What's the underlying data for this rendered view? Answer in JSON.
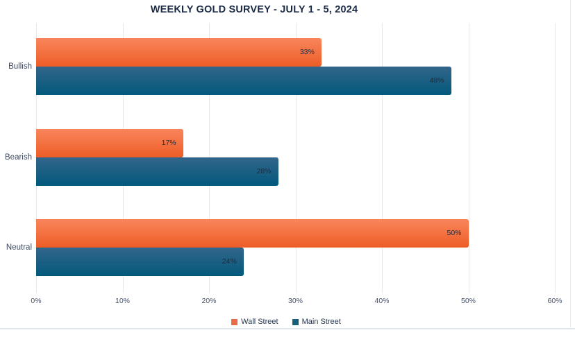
{
  "page": {
    "background": "#ffffff",
    "card_border_color": "#dce7f0"
  },
  "chart_data": {
    "type": "bar",
    "orientation": "horizontal",
    "title": "WEEKLY GOLD SURVEY - JULY 1 - 5, 2024",
    "title_color": "#1c2b45",
    "categories": [
      "Bullish",
      "Bearish",
      "Neutral"
    ],
    "series": [
      {
        "name": "Wall Street",
        "values": [
          33,
          17,
          50
        ],
        "color_top": "#f9855c",
        "color_bottom": "#ee5d26",
        "legend_color": "#ea6d47"
      },
      {
        "name": "Main Street",
        "values": [
          48,
          28,
          24
        ],
        "color_top": "#33658a",
        "color_bottom": "#02597c",
        "legend_color": "#176079"
      }
    ],
    "value_suffix": "%",
    "data_label_color": "#1e2c3e",
    "xlabel": "",
    "ylabel": "",
    "xlim": [
      0,
      60
    ],
    "x_ticks": [
      "0%",
      "10%",
      "20%",
      "30%",
      "40%",
      "50%",
      "60%"
    ],
    "x_tick_values": [
      0,
      10,
      20,
      30,
      40,
      50,
      60
    ],
    "grid": "vertical",
    "gridline_color": "#e7eaec",
    "legend_position": "bottom"
  }
}
